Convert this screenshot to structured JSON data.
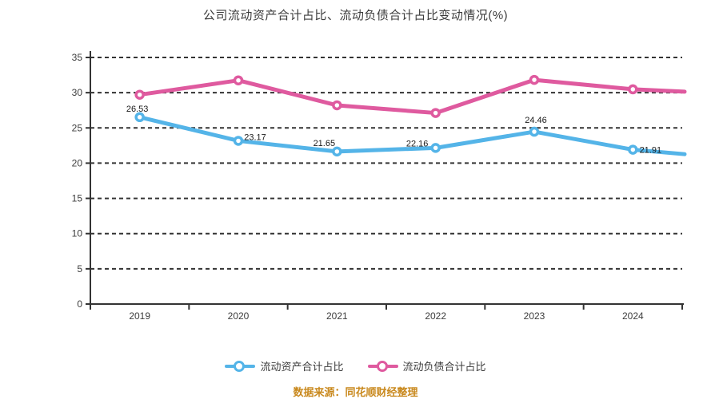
{
  "title": {
    "text": "公司流动资产合计占比、流动负债合计占比变动情况(%)"
  },
  "chart_data": {
    "type": "line",
    "categories": [
      "2019",
      "2020",
      "2021",
      "2022",
      "2023",
      "2024"
    ],
    "series": [
      {
        "name": "流动资产合计占比",
        "color": "#54b4e8",
        "values": [
          26.53,
          23.17,
          21.65,
          22.16,
          24.46,
          21.91
        ],
        "point_labels": [
          "26.53",
          "23.17",
          "21.65",
          "22.16",
          "24.46",
          "21.91"
        ]
      },
      {
        "name": "流动负债合计占比",
        "color": "#df5a9f",
        "values": [
          29.71,
          31.75,
          28.21,
          27.12,
          31.82,
          30.48
        ],
        "point_labels": [
          "",
          "",
          "",
          "",
          "",
          ""
        ]
      }
    ],
    "xlabel": "",
    "ylabel": "",
    "ylim": [
      0,
      35
    ],
    "ytick_step": 5,
    "grid": "horizontal-dashed",
    "legend_position": "bottom",
    "marker_style": "donut-circle"
  },
  "axes": {
    "line_color": "#333333",
    "tick_label_color": "#3c3c3c",
    "point_label_color": "#1a1a1a"
  },
  "legend": {
    "items": [
      {
        "label": "流动资产合计占比",
        "color": "#54b4e8"
      },
      {
        "label": "流动负债合计占比",
        "color": "#df5a9f"
      }
    ]
  },
  "footer": {
    "source_text": "数据来源：同花顺财经整理",
    "color": "#c9891e"
  }
}
